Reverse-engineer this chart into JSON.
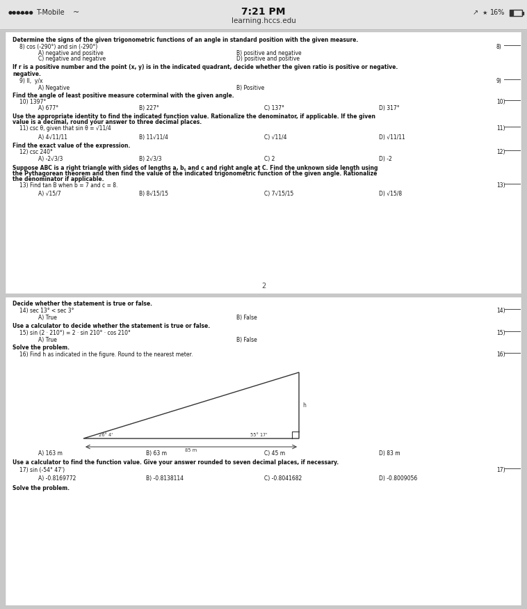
{
  "bg_color": "#c8c8c8",
  "page_bg": "#ffffff",
  "status_time": "7:21 PM",
  "status_url": "learning.hccs.edu",
  "status_carrier": "T-Mobile",
  "status_signal": "16%",
  "q8_header": "Determine the signs of the given trigonometric functions of an angle in standard position with the given measure.",
  "q8_q": "8) cos (-290°) and sin (-290°)",
  "q8_a": "A) negative and positive",
  "q8_b": "B) positive and negative",
  "q8_c": "C) negative and negative",
  "q8_d": "D) positive and positive",
  "q9_header": "If r is a positive number and the point (x, y) is in the indicated quadrant, decide whether the given ratio is positive or negative.",
  "q9_q": "9) II,  y/x",
  "q9_a": "A) Negative",
  "q9_b": "B) Positive",
  "q10_header": "Find the angle of least positive measure coterminal with the given angle.",
  "q10_q": "10) 1397°",
  "q10_a": "A) 677°",
  "q10_b": "B) 227°",
  "q10_c": "C) 137°",
  "q10_d": "D) 317°",
  "q11_header1": "Use the appropriate identity to find the indicated function value. Rationalize the denominator, if applicable. If the given",
  "q11_header2": "value is a decimal, round your answer to three decimal places.",
  "q11_q": "11) csc θ, given that sin θ = √11/4",
  "q11_a": "A) 4√11/11",
  "q11_b": "B) 11√11/4",
  "q11_c": "C) √11/4",
  "q11_d": "D) √11/11",
  "q12_header": "Find the exact value of the expression.",
  "q12_q": "12) csc 240°",
  "q12_a": "A) -2√3/3",
  "q12_b": "B) 2√3/3",
  "q12_c": "C) 2",
  "q12_d": "D) -2",
  "q13_header1": "Suppose ABC is a right triangle with sides of lengths a, b, and c and right angle at C. Find the unknown side length using",
  "q13_header2": "the Pythagorean theorem and then find the value of the indicated trigonometric function of the given angle. Rationalize",
  "q13_header3": "the denominator if applicable.",
  "q13_q": "13) Find tan B when b = 7 and c = 8.",
  "q13_a": "A) √15/7",
  "q13_b": "B) 8√15/15",
  "q13_c": "C) 7√15/15",
  "q13_d": "D) √15/8",
  "page_num": "2",
  "q14_header": "Decide whether the statement is true or false.",
  "q14_q": "14) sec 13° < sec 3°",
  "q14_a": "A) True",
  "q14_b": "B) False",
  "q15_header": "Use a calculator to decide whether the statement is true or false.",
  "q15_q": "15) sin (2 · 210°) = 2 · sin 210° · cos 210°",
  "q15_a": "A) True",
  "q15_b": "B) False",
  "q16_header": "Solve the problem.",
  "q16_q": "16) Find h as indicated in the figure. Round to the nearest meter.",
  "q16_angle1": "26° 4'",
  "q16_angle2": "55° 17'",
  "q16_base": "85 m",
  "q16_h": "h",
  "q16_a": "A) 163 m",
  "q16_b": "B) 63 m",
  "q16_c": "C) 45 m",
  "q16_d": "D) 83 m",
  "q17_header": "Use a calculator to find the function value. Give your answer rounded to seven decimal places, if necessary.",
  "q17_q": "17) sin (-54° 47')",
  "q17_a": "A) -0.8169772",
  "q17_b": "B) -0.8138114",
  "q17_c": "C) -0.8041682",
  "q17_d": "D) -0.8009056",
  "footer": "Solve the problem."
}
